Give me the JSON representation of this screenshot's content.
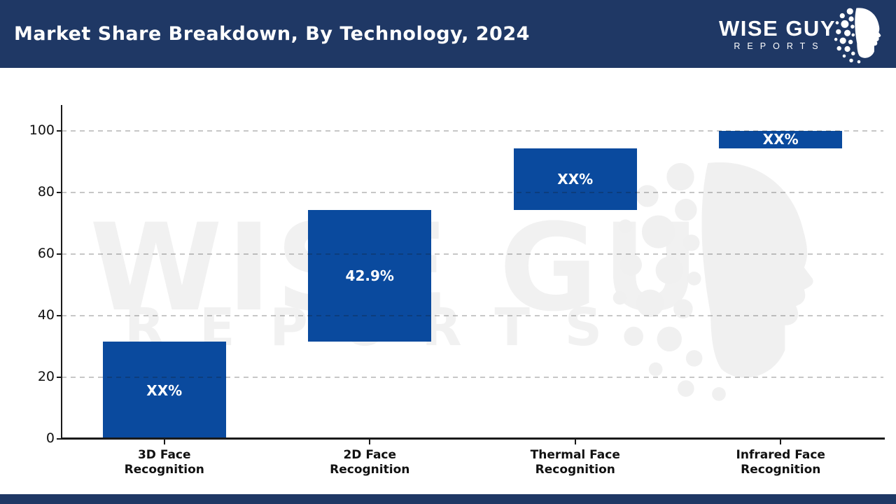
{
  "header": {
    "title": "Market Share Breakdown, By Technology, 2024",
    "logo": {
      "line1": "WISE GUY",
      "line2": "REPORTS"
    }
  },
  "watermark": {
    "line1": "WISE GUY",
    "line2": "REPORTS"
  },
  "chart_data": {
    "type": "bar",
    "subtype": "waterfall",
    "title": "Market Share Breakdown, By Technology, 2024",
    "xlabel": "",
    "ylabel": "",
    "ylim": [
      0,
      100
    ],
    "yticks": [
      0,
      20,
      40,
      60,
      80,
      100
    ],
    "grid": "dashed-horizontal",
    "legend": "none",
    "bar_color": "#0a4a9e",
    "categories": [
      "3D Face Recognition",
      "2D Face Recognition",
      "Thermal Face Recognition",
      "Infrared Face Recognition"
    ],
    "segments": [
      {
        "line1": "3D Face",
        "line2": "Recognition",
        "start": 0,
        "end": 31.5,
        "value": 31.5,
        "value_label": "XX%"
      },
      {
        "line1": "2D Face",
        "line2": "Recognition",
        "start": 31.5,
        "end": 74.4,
        "value": 42.9,
        "value_label": "42.9%"
      },
      {
        "line1": "Thermal Face",
        "line2": "Recognition",
        "start": 74.4,
        "end": 94.4,
        "value": 20.0,
        "value_label": "XX%"
      },
      {
        "line1": "Infrared Face",
        "line2": "Recognition",
        "start": 94.4,
        "end": 100,
        "value": 5.6,
        "value_label": "XX%"
      }
    ]
  }
}
